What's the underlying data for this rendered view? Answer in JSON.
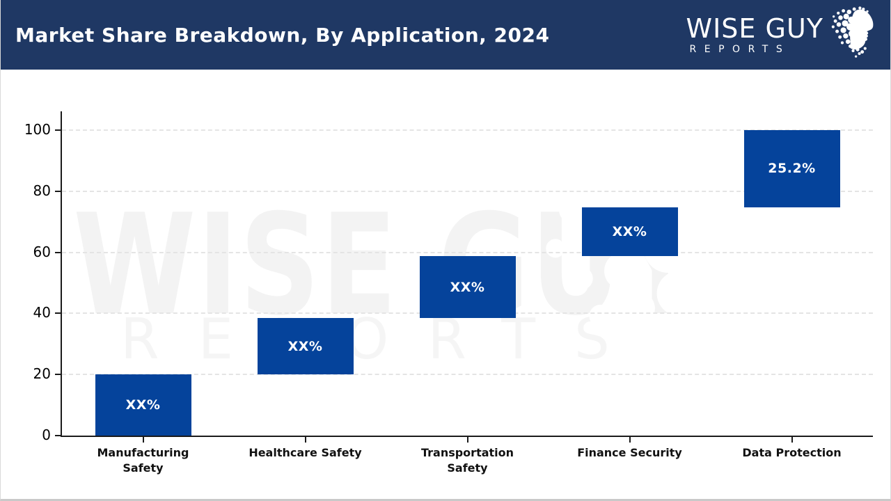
{
  "header": {
    "title": "Market Share Breakdown, By Application, 2024",
    "bg_color": "#1f3864",
    "logo": {
      "line1": "WISE GUY",
      "line2": "REPORTS",
      "face_icon": "dotted-head-profile"
    }
  },
  "watermark": {
    "line1": "WISE GUY",
    "line2": "REPORTS",
    "face_icon": "dotted-head-profile"
  },
  "chart_data": {
    "type": "bar",
    "subtype": "waterfall",
    "title": "Market Share Breakdown, By Application, 2024",
    "categories": [
      "Manufacturing Safety",
      "Healthcare Safety",
      "Transportation Safety",
      "Finance Security",
      "Data Protection"
    ],
    "category_label_lines": [
      [
        "Manufacturing",
        "Safety"
      ],
      [
        "Healthcare Safety"
      ],
      [
        "Transportation",
        "Safety"
      ],
      [
        "Finance Security"
      ],
      [
        "Data Protection"
      ]
    ],
    "segments": [
      {
        "category": "Manufacturing Safety",
        "start": 0,
        "end": 20,
        "label": "XX%"
      },
      {
        "category": "Healthcare Safety",
        "start": 20,
        "end": 38.4,
        "label": "XX%"
      },
      {
        "category": "Transportation Safety",
        "start": 38.4,
        "end": 58.7,
        "label": "XX%"
      },
      {
        "category": "Finance Security",
        "start": 58.7,
        "end": 74.8,
        "label": "XX%"
      },
      {
        "category": "Data Protection",
        "start": 74.8,
        "end": 100,
        "label": "25.2%"
      }
    ],
    "ylim": [
      0,
      100
    ],
    "yticks": [
      0,
      20,
      40,
      60,
      80,
      100
    ],
    "xlabel": "",
    "ylabel": "",
    "grid": "horizontal-dashed",
    "legend": "none",
    "bar_color": "#05439b",
    "axis_color": "#1a1a1a",
    "gridline_color": "#e4e4e4"
  }
}
